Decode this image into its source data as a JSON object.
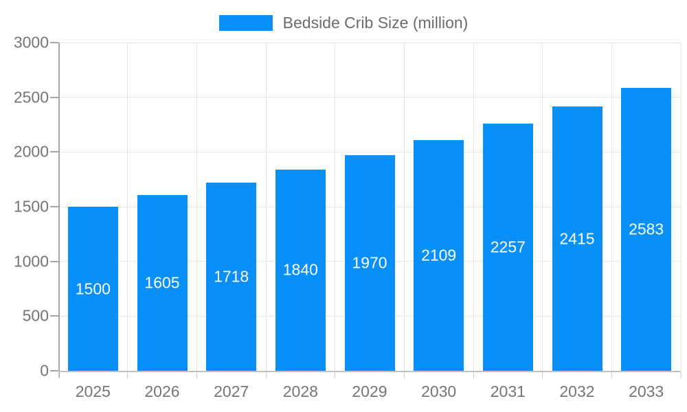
{
  "legend": {
    "label": "Bedside Crib Size (million)"
  },
  "chart_data": {
    "type": "bar",
    "title": "Bedside Crib Size (million)",
    "categories": [
      "2025",
      "2026",
      "2027",
      "2028",
      "2029",
      "2030",
      "2031",
      "2032",
      "2033"
    ],
    "values": [
      1500,
      1605,
      1718,
      1840,
      1970,
      2109,
      2257,
      2415,
      2583
    ],
    "xlabel": "",
    "ylabel": "",
    "ylim": [
      0,
      3000
    ],
    "yticks": [
      0,
      500,
      1000,
      1500,
      2000,
      2500,
      3000
    ],
    "grid": true,
    "legend_position": "top",
    "value_labels": "inside-center",
    "bar_color": "#0890f8",
    "value_label_color": "#ffffff",
    "gridline_color": "#e5e5e5",
    "axis_color": "#a6a6a6",
    "tick_label_color": "#757575"
  }
}
